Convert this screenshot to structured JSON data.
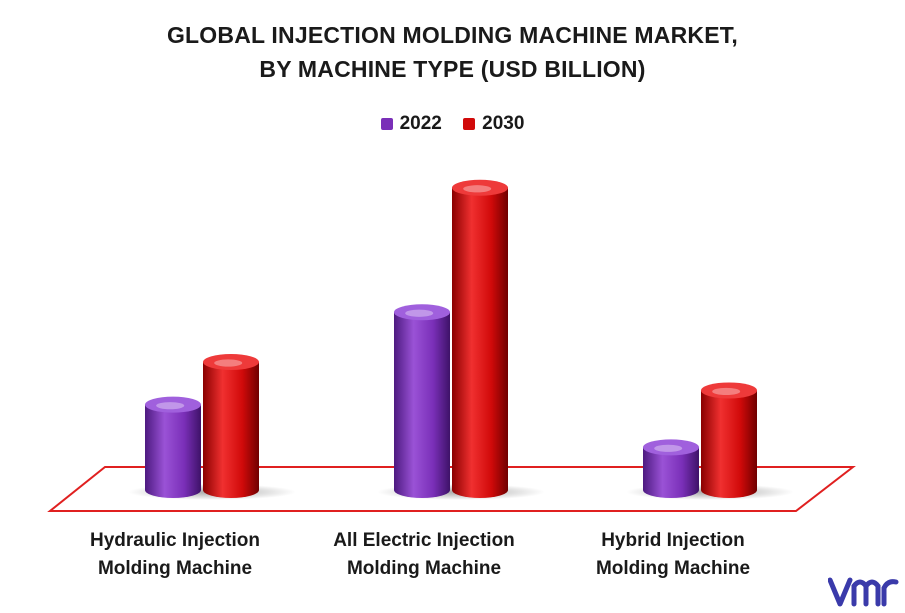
{
  "chart_data": {
    "type": "bar",
    "title_line1": "GLOBAL INJECTION MOLDING MACHINE MARKET,",
    "title_line2": "BY MACHINE TYPE (USD BILLION)",
    "categories_line1": [
      "Hydraulic Injection",
      "All Electric Injection",
      "Hybrid Injection"
    ],
    "categories_line2": [
      "Molding Machine",
      "Molding Machine",
      "Molding Machine"
    ],
    "series": [
      {
        "name": "2022",
        "values": [
          2.4,
          5.0,
          1.2
        ],
        "color": "#7a2fb8"
      },
      {
        "name": "2030",
        "values": [
          3.6,
          8.5,
          2.8
        ],
        "color": "#d10a0a"
      }
    ],
    "ylim": [
      0,
      9
    ],
    "legend_position": "top-center",
    "grid": false,
    "floor_color": "#e02020"
  },
  "legend": {
    "item1": "2022",
    "item2": "2030"
  },
  "logo": {
    "icon": "vmr-logo-icon",
    "color": "#3a3aaa"
  }
}
